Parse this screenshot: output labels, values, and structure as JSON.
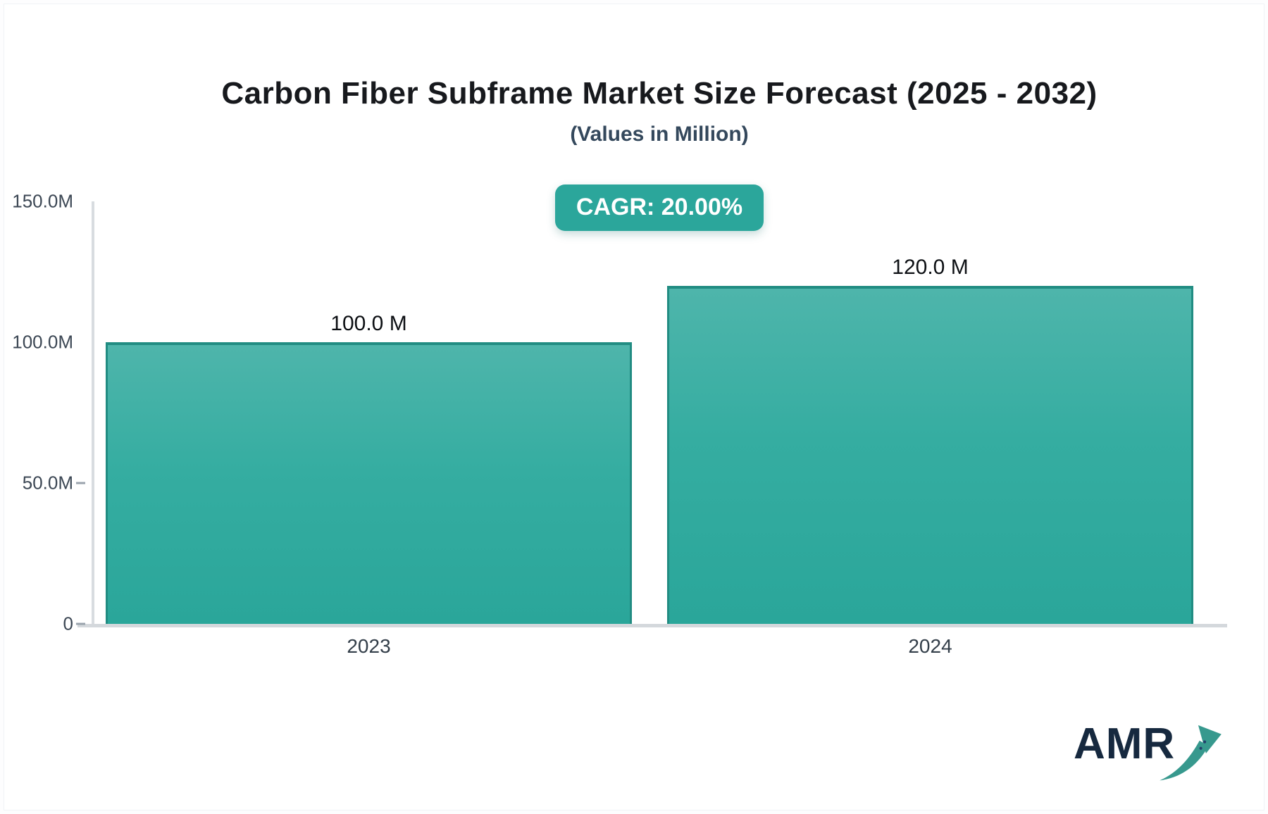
{
  "header": {
    "title": "Carbon Fiber Subframe Market Size Forecast (2025 - 2032)",
    "subtitle": "(Values in Million)",
    "cagr_label": "CAGR: 20.00%"
  },
  "chart_data": {
    "type": "bar",
    "title": "Carbon Fiber Subframe Market Size Forecast (2025 - 2032)",
    "subtitle": "(Values in Million)",
    "unit": "Million",
    "cagr_percent": 20.0,
    "categories": [
      "2023",
      "2024"
    ],
    "values": [
      100.0,
      120.0
    ],
    "value_labels": [
      "100.0 M",
      "120.0 M"
    ],
    "ylabel": "",
    "xlabel": "",
    "ylim": [
      0,
      150
    ],
    "yticks": [
      {
        "value": 0,
        "label": "0",
        "dash": true
      },
      {
        "value": 50,
        "label": "50.0M",
        "dash": true
      },
      {
        "value": 100,
        "label": "100.0M",
        "dash": false
      },
      {
        "value": 150,
        "label": "150.0M",
        "dash": false
      }
    ],
    "grid": false,
    "legend": false
  },
  "colors": {
    "accent_teal": "#2ba69b",
    "bar_top": "#4eb5ab",
    "bar_bottom": "#2aa69a",
    "bar_border": "#218c82",
    "axis_line": "#d6dade",
    "badge_bg": "#2ba69b",
    "badge_text": "#ffffff",
    "logo_navy": "#16293f",
    "logo_arrow_teal": "#37998e"
  },
  "branding": {
    "logo_text": "AMR"
  }
}
